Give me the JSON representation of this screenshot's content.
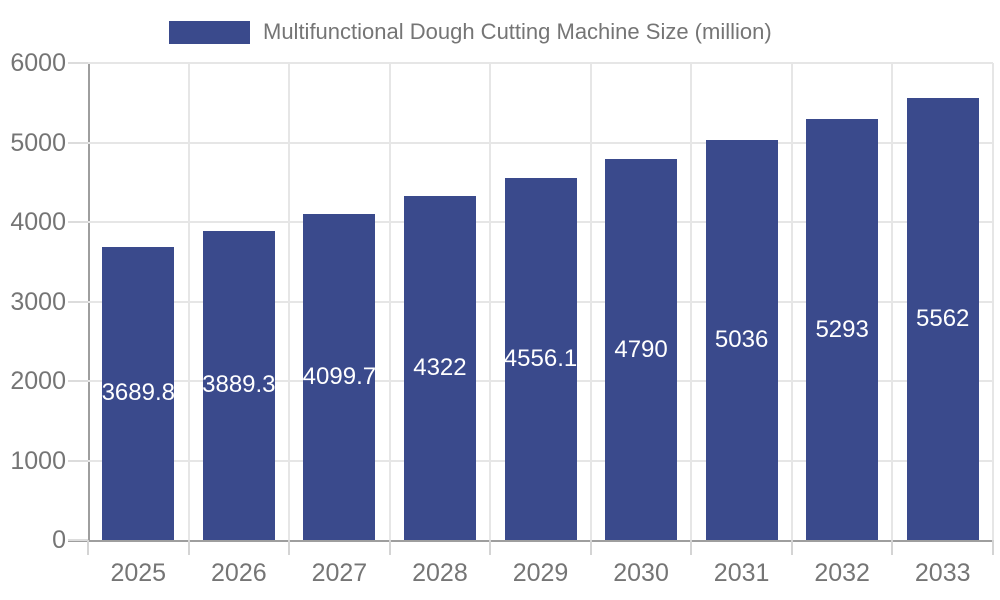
{
  "chart_data": {
    "type": "bar",
    "title": "Multifunctional Dough Cutting Machine Size (million)",
    "legend_position": "top",
    "xlabel": "",
    "ylabel": "",
    "categories": [
      "2025",
      "2026",
      "2027",
      "2028",
      "2029",
      "2030",
      "2031",
      "2032",
      "2033"
    ],
    "values": [
      3689.8,
      3889.3,
      4099.7,
      4322,
      4556.1,
      4790,
      5036,
      5293,
      5562
    ],
    "value_labels": [
      "3689.8",
      "3889.3",
      "4099.7",
      "4322",
      "4556.1",
      "4790",
      "5036",
      "5293",
      "5562"
    ],
    "ylim": [
      0,
      6000
    ],
    "y_ticks": [
      0,
      1000,
      2000,
      3000,
      4000,
      5000,
      6000
    ],
    "grid": true
  },
  "colors": {
    "bar": "#3A4A8C",
    "grid": "#e6e6e6",
    "axis": "#9e9e9e",
    "y_tick": "#dcdcdc",
    "x_tick": "#d4d4d4",
    "axis_text": "#757575",
    "bar_label_text": "#ffffff",
    "background": "#ffffff"
  }
}
